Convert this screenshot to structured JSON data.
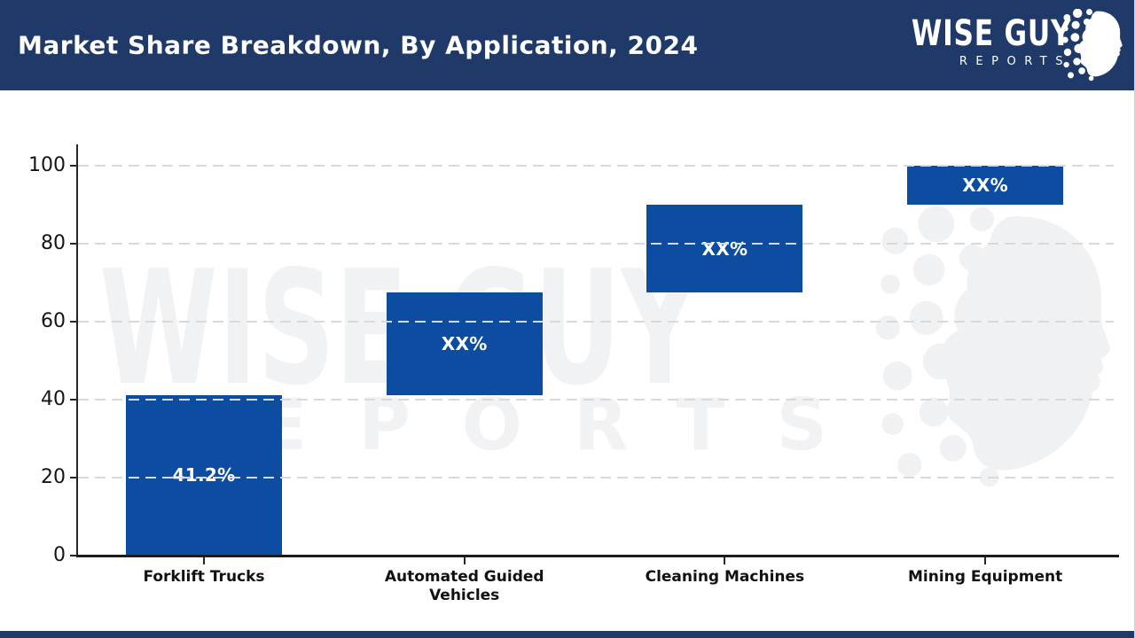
{
  "header": {
    "title": "Market Share Breakdown, By Application, 2024",
    "logo": {
      "line1": "WISE GUY",
      "line2": "REPORTS"
    }
  },
  "watermark": {
    "line1": "WISE GUY",
    "line2": "REPORTS"
  },
  "colors": {
    "header_navy": "#1f3a68",
    "bar_blue": "#0d4da1",
    "watermark_gray": "#f1f2f4",
    "grid_gray": "#d9d9d9",
    "axis_black": "#262626",
    "value_label_white": "#ffffff",
    "text_black": "#111111"
  },
  "chart_data": {
    "type": "bar",
    "subtype": "waterfall",
    "title": "Market Share Breakdown, By Application, 2024",
    "categories": [
      "Forklift Trucks",
      "Automated Guided Vehicles",
      "Cleaning Machines",
      "Mining Equipment"
    ],
    "segments": [
      {
        "category": "Forklift Trucks",
        "start": 0,
        "end": 41.2,
        "label": "41.2%"
      },
      {
        "category": "Automated Guided Vehicles",
        "start": 41.2,
        "end": 67.4,
        "label": "XX%"
      },
      {
        "category": "Cleaning Machines",
        "start": 67.4,
        "end": 89.9,
        "label": "XX%"
      },
      {
        "category": "Mining Equipment",
        "start": 89.9,
        "end": 100,
        "label": "XX%"
      }
    ],
    "yticks": [
      0,
      20,
      40,
      60,
      80,
      100
    ],
    "ylim": [
      0,
      105
    ],
    "xlabel": "",
    "ylabel": "",
    "grid": "horizontal-dashed",
    "grid_above_bars": true,
    "legend": "none",
    "bar_color": "#0d4da1",
    "value_label_color": "#ffffff"
  }
}
